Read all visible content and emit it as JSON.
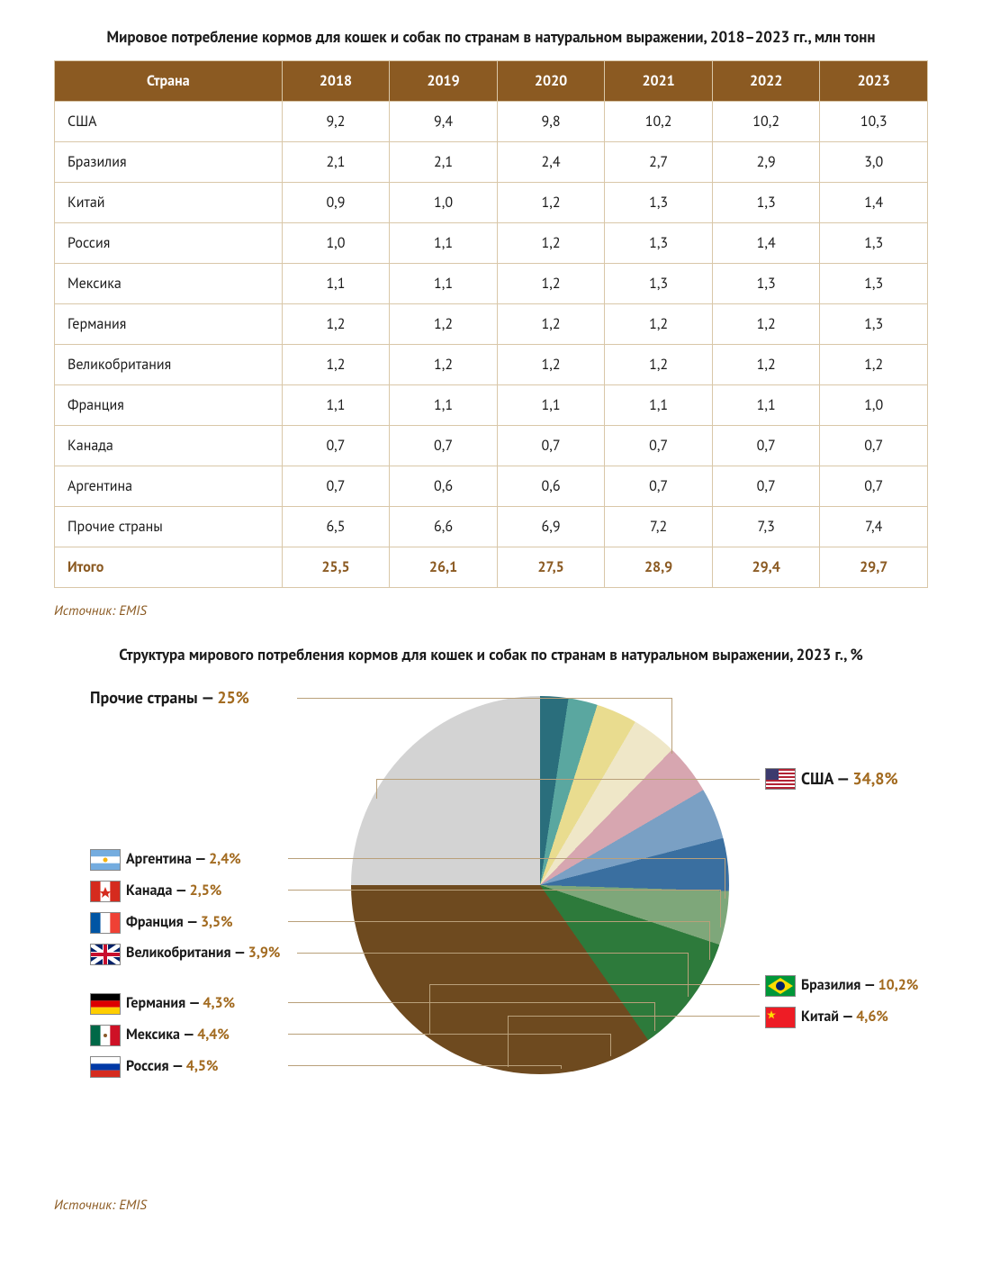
{
  "table": {
    "title": "Мировое потребление кормов для кошек и собак по странам в натуральном выражении, 2018–2023 гг., млн тонн",
    "columns": [
      "Страна",
      "2018",
      "2019",
      "2020",
      "2021",
      "2022",
      "2023"
    ],
    "col_widths_pct": [
      26,
      12.3,
      12.3,
      12.3,
      12.3,
      12.3,
      12.3
    ],
    "rows": [
      [
        "США",
        "9,2",
        "9,4",
        "9,8",
        "10,2",
        "10,2",
        "10,3"
      ],
      [
        "Бразилия",
        "2,1",
        "2,1",
        "2,4",
        "2,7",
        "2,9",
        "3,0"
      ],
      [
        "Китай",
        "0,9",
        "1,0",
        "1,2",
        "1,3",
        "1,3",
        "1,4"
      ],
      [
        "Россия",
        "1,0",
        "1,1",
        "1,2",
        "1,3",
        "1,4",
        "1,3"
      ],
      [
        "Мексика",
        "1,1",
        "1,1",
        "1,2",
        "1,3",
        "1,3",
        "1,3"
      ],
      [
        "Германия",
        "1,2",
        "1,2",
        "1,2",
        "1,2",
        "1,2",
        "1,3"
      ],
      [
        "Великобритания",
        "1,2",
        "1,2",
        "1,2",
        "1,2",
        "1,2",
        "1,2"
      ],
      [
        "Франция",
        "1,1",
        "1,1",
        "1,1",
        "1,1",
        "1,1",
        "1,0"
      ],
      [
        "Канада",
        "0,7",
        "0,7",
        "0,7",
        "0,7",
        "0,7",
        "0,7"
      ],
      [
        "Аргентина",
        "0,7",
        "0,6",
        "0,6",
        "0,7",
        "0,7",
        "0,7"
      ],
      [
        "Прочие страны",
        "6,5",
        "6,6",
        "6,9",
        "7,2",
        "7,3",
        "7,4"
      ]
    ],
    "total_row": [
      "Итого",
      "25,5",
      "26,1",
      "27,5",
      "28,9",
      "29,4",
      "29,7"
    ],
    "header_bg": "#8b5a22",
    "header_fg": "#ffffff",
    "border_color": "#d9c7a8",
    "total_color": "#8b5a22"
  },
  "source_label": "Источник: EMIS",
  "pie": {
    "title": "Структура мирового потребления кормов для кошек и собак по странам в натуральном выражении, 2023 г., %",
    "type": "pie",
    "start_angle_deg": -90,
    "slices": [
      {
        "key": "other",
        "name": "Прочие страны",
        "pct": 25.0,
        "color": "#d3d3d3"
      },
      {
        "key": "ar",
        "name": "Аргентина",
        "pct": 2.4,
        "color": "#2a6e7c"
      },
      {
        "key": "ca",
        "name": "Канада",
        "pct": 2.5,
        "color": "#5aa7a0"
      },
      {
        "key": "fr",
        "name": "Франция",
        "pct": 3.5,
        "color": "#e9dc8f"
      },
      {
        "key": "gb",
        "name": "Великобритания",
        "pct": 3.9,
        "color": "#efe7c8"
      },
      {
        "key": "de",
        "name": "Германия",
        "pct": 4.3,
        "color": "#d7a6b0"
      },
      {
        "key": "mx",
        "name": "Мексика",
        "pct": 4.4,
        "color": "#7aa0c4"
      },
      {
        "key": "ru",
        "name": "Россия",
        "pct": 4.5,
        "color": "#3a6fa0"
      },
      {
        "key": "cn",
        "name": "Китай",
        "pct": 4.6,
        "color": "#7ea77a"
      },
      {
        "key": "br",
        "name": "Бразилия",
        "pct": 10.2,
        "color": "#2d7a3b"
      },
      {
        "key": "us",
        "name": "США",
        "pct": 34.8,
        "color": "#6e4a1f"
      }
    ],
    "label_country_color": "#1a1a1a",
    "label_pct_color": "#a26a1f",
    "leader_color": "#b9a07a",
    "flags": {
      "us": {
        "bg": "#b22234",
        "stripes": 5,
        "canton": "#3c3b6e"
      },
      "br": {
        "bg": "#009739",
        "diamond": "#fedd00",
        "circle": "#012169"
      },
      "cn": {
        "bg": "#ee1c25",
        "star": "#ffde00"
      },
      "ru": {
        "bands": [
          "#ffffff",
          "#0039a6",
          "#d52b1e"
        ]
      },
      "mx": {
        "bands_v": [
          "#006847",
          "#ffffff",
          "#ce1126"
        ]
      },
      "de": {
        "bands": [
          "#000000",
          "#dd0000",
          "#ffce00"
        ]
      },
      "gb": {
        "bg": "#012169",
        "cross": "#ffffff",
        "cross2": "#c8102e"
      },
      "fr": {
        "bands_v": [
          "#0055a4",
          "#ffffff",
          "#ef4135"
        ]
      },
      "ca": {
        "bands_v": [
          "#d52b1e",
          "#ffffff",
          "#d52b1e"
        ],
        "leaf": "#d52b1e"
      },
      "ar": {
        "bands": [
          "#74acdf",
          "#ffffff",
          "#74acdf"
        ],
        "sun": "#f6b40e"
      }
    }
  }
}
